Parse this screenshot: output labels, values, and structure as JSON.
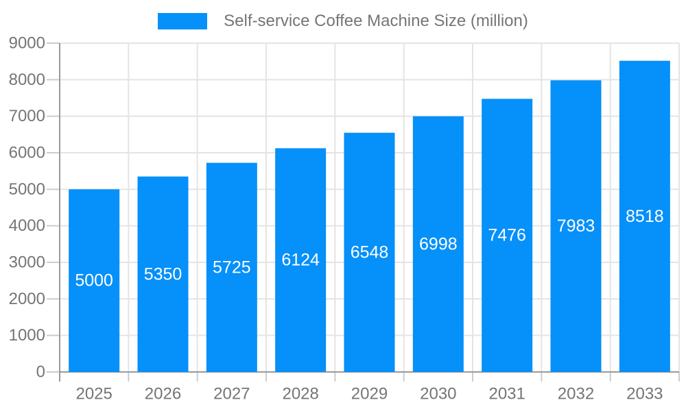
{
  "legend": {
    "label": "Self-service Coffee Machine Size (million)",
    "swatch_color": "#0690f9"
  },
  "chart_data": {
    "type": "bar",
    "title": "Self-service Coffee Machine Size (million)",
    "xlabel": "",
    "ylabel": "",
    "categories": [
      "2025",
      "2026",
      "2027",
      "2028",
      "2029",
      "2030",
      "2031",
      "2032",
      "2033"
    ],
    "values": [
      5000,
      5350,
      5725,
      6124,
      6548,
      6998,
      7476,
      7983,
      8518
    ],
    "series": [
      {
        "name": "Self-service Coffee Machine Size (million)",
        "values": [
          5000,
          5350,
          5725,
          6124,
          6548,
          6998,
          7476,
          7983,
          8518
        ]
      }
    ],
    "ylim": [
      0,
      9000
    ],
    "yticks": [
      0,
      1000,
      2000,
      3000,
      4000,
      5000,
      6000,
      7000,
      8000,
      9000
    ],
    "grid": true,
    "legend_position": "top",
    "bar_color": "#0690f9",
    "bar_label_color": "#ffffff",
    "axis_text_color": "#757575",
    "grid_color": "#e4e4e4",
    "tick_color": "#cccccc",
    "axis_line_color": "#9a9a9a",
    "background_color": "#ffffff"
  }
}
